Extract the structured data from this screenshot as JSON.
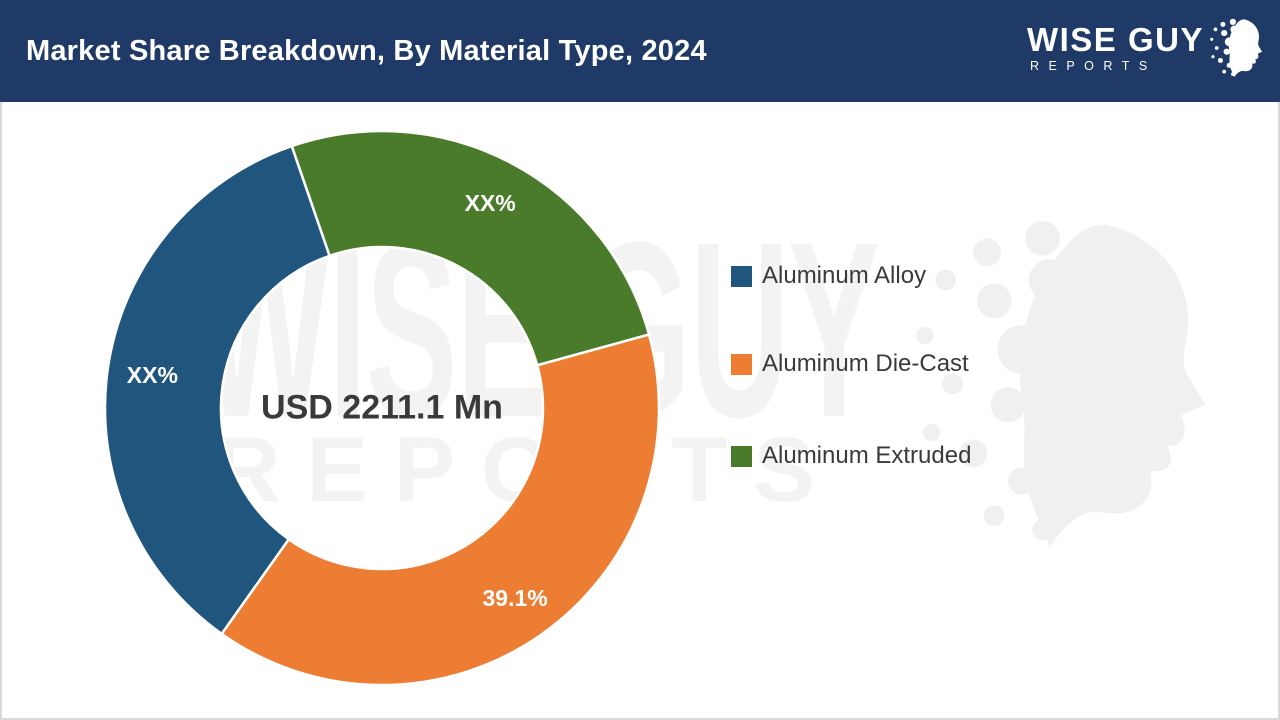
{
  "header": {
    "title": "Market Share Breakdown, By Material Type, 2024",
    "logo_line1": "WISE GUY",
    "logo_line2": "REPORTS"
  },
  "watermark": {
    "line1": "WISE GUY",
    "line2": "REPORTS"
  },
  "colors": {
    "header_bg": "#203A67",
    "blue": "#20567D",
    "orange": "#EC7D33",
    "green": "#4A7B2B",
    "text_dark": "#3A3A3A",
    "watermark_gray": "#F3F3F3",
    "border_gray": "#D9D9D9"
  },
  "chart_data": {
    "type": "pie",
    "variant": "donut",
    "title": "Market Share Breakdown, By Material Type, 2024",
    "center_label": "USD 2211.1 Mn",
    "start_angle_deg": 109,
    "direction": "counterclockwise",
    "legend_position": "right",
    "segments": [
      {
        "name": "Aluminum Alloy",
        "label": "XX%",
        "value_pct": 34.9,
        "color": "#20567D"
      },
      {
        "name": "Aluminum Die-Cast",
        "label": "39.1%",
        "value_pct": 39.1,
        "color": "#EC7D33"
      },
      {
        "name": "Aluminum Extruded",
        "label": "XX%",
        "value_pct": 26.0,
        "color": "#4A7B2B"
      }
    ]
  }
}
